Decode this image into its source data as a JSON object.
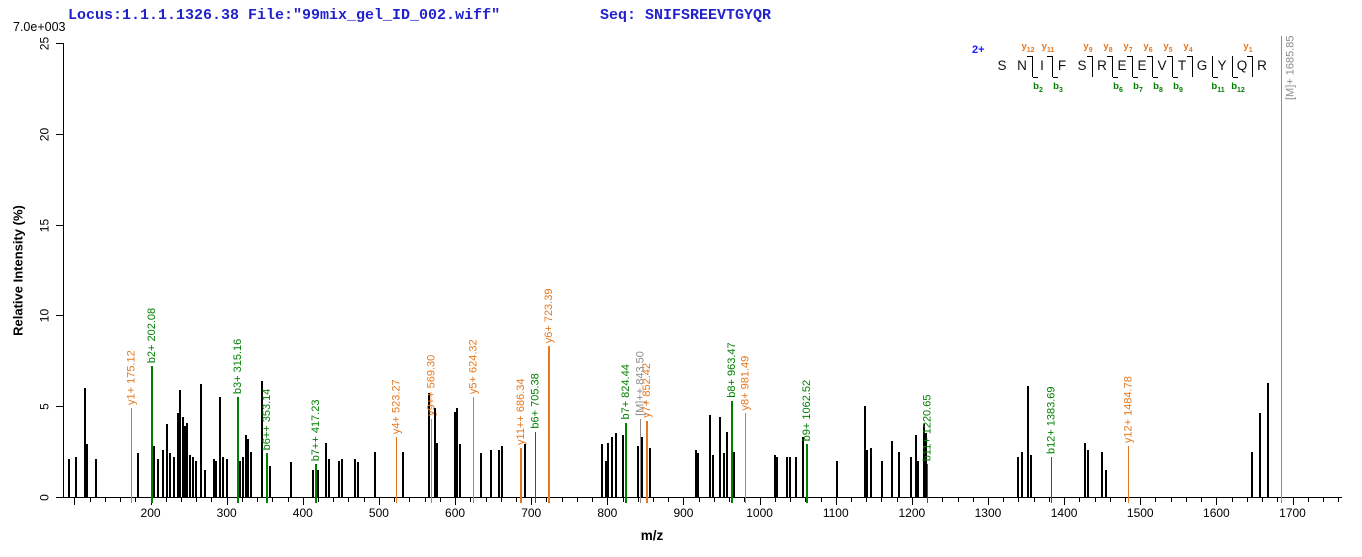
{
  "header": {
    "locus_file": "Locus:1.1.1.1326.38 File:\"99mix_gel_ID_002.wiff\"",
    "seq": "Seq: SNIFSREEVTGYQR"
  },
  "scale_label": "7.0e+003",
  "colors": {
    "y_ion": "#e6781e",
    "b_ion": "#008000",
    "precursor": "#8c8c8c",
    "peak_black": "#000000",
    "header_blue": "#2222cc",
    "charge_blue": "#1a1aff"
  },
  "chart_data": {
    "type": "bar",
    "title": "MS/MS fragment spectrum",
    "xlabel": "m/z",
    "ylabel": "Relative  Intensity (%)",
    "xlim": [
      85,
      1765
    ],
    "ylim": [
      0,
      25
    ],
    "y_ticks": [
      0,
      5,
      10,
      15,
      20,
      25
    ],
    "x_major_step": 100,
    "x_minor_step": 20,
    "x_label_min": 200,
    "x_label_max": 1700,
    "grid": false,
    "peaks": [
      [
        93,
        2.1,
        "bg"
      ],
      [
        102,
        2.2,
        "bg"
      ],
      [
        114,
        6.0,
        "bg"
      ],
      [
        117,
        2.9,
        "bg"
      ],
      [
        128,
        2.1,
        "bg"
      ],
      [
        175.12,
        4.9,
        "y",
        "y1+ 175.12"
      ],
      [
        183,
        2.4,
        "bg"
      ],
      [
        202.08,
        7.2,
        "b",
        "b2+ 202.08"
      ],
      [
        205,
        2.8,
        "bg"
      ],
      [
        210,
        2.1,
        "bg"
      ],
      [
        217,
        2.6,
        "bg"
      ],
      [
        222,
        4.0,
        "bg"
      ],
      [
        226,
        2.4,
        "bg"
      ],
      [
        231,
        2.2,
        "bg"
      ],
      [
        236,
        4.6,
        "bg"
      ],
      [
        239,
        5.9,
        "bg"
      ],
      [
        242,
        4.4,
        "bg"
      ],
      [
        245,
        3.9,
        "bg"
      ],
      [
        248,
        4.1,
        "bg"
      ],
      [
        252,
        2.3,
        "bg"
      ],
      [
        256,
        2.2,
        "bg"
      ],
      [
        260,
        2.0,
        "bg"
      ],
      [
        266,
        6.2,
        "bg"
      ],
      [
        271,
        1.5,
        "bg"
      ],
      [
        283,
        2.1,
        "bg"
      ],
      [
        286,
        2.0,
        "bg"
      ],
      [
        291,
        5.5,
        "bg"
      ],
      [
        295,
        2.2,
        "bg"
      ],
      [
        300,
        2.1,
        "bg"
      ],
      [
        315.16,
        5.5,
        "b",
        "b3+ 315.16"
      ],
      [
        318,
        2.0,
        "bg"
      ],
      [
        321,
        2.2,
        "bg"
      ],
      [
        325,
        3.4,
        "bg"
      ],
      [
        328,
        3.2,
        "bg"
      ],
      [
        332,
        2.5,
        "bg"
      ],
      [
        346,
        6.4,
        "bg"
      ],
      [
        353.14,
        2.4,
        "b",
        "b6++ 353.14"
      ],
      [
        357,
        1.7,
        "bg"
      ],
      [
        384,
        1.9,
        "bg"
      ],
      [
        413,
        1.5,
        "bg"
      ],
      [
        417.23,
        1.8,
        "b",
        "b7++ 417.23"
      ],
      [
        420,
        1.5,
        "bg"
      ],
      [
        431,
        3.0,
        "bg"
      ],
      [
        434,
        2.1,
        "bg"
      ],
      [
        448,
        2.0,
        "bg"
      ],
      [
        451,
        2.1,
        "bg"
      ],
      [
        469,
        2.1,
        "bg"
      ],
      [
        472,
        1.9,
        "bg"
      ],
      [
        495,
        2.5,
        "bg"
      ],
      [
        523.27,
        3.3,
        "y",
        "y4+ 523.27"
      ],
      [
        531,
        2.5,
        "bg"
      ],
      [
        566,
        5.7,
        "bg"
      ],
      [
        569.3,
        4.3,
        "y",
        "y9++ 569.30"
      ],
      [
        573,
        4.9,
        "bg"
      ],
      [
        576,
        3.0,
        "bg"
      ],
      [
        600,
        4.7,
        "bg"
      ],
      [
        603,
        4.9,
        "bg"
      ],
      [
        606,
        2.9,
        "bg"
      ],
      [
        624.32,
        5.5,
        "y",
        "y5+ 624.32"
      ],
      [
        634,
        2.4,
        "bg"
      ],
      [
        647,
        2.6,
        "bg"
      ],
      [
        658,
        2.6,
        "bg"
      ],
      [
        661,
        2.8,
        "bg"
      ],
      [
        686.34,
        2.7,
        "y",
        "y11++ 686.34"
      ],
      [
        692,
        2.9,
        "bg"
      ],
      [
        705.38,
        3.6,
        "b",
        "b6+ 705.38"
      ],
      [
        723.39,
        8.3,
        "y",
        "y6+ 723.39"
      ],
      [
        793,
        2.9,
        "bg"
      ],
      [
        798,
        2.0,
        "bg"
      ],
      [
        801,
        3.0,
        "bg"
      ],
      [
        806,
        3.3,
        "bg"
      ],
      [
        812,
        3.5,
        "bg"
      ],
      [
        820,
        3.4,
        "bg"
      ],
      [
        824.44,
        4.1,
        "b",
        "b7+ 824.44"
      ],
      [
        840,
        2.8,
        "bg"
      ],
      [
        843.5,
        4.3,
        "M",
        "[M]++ 843.50"
      ],
      [
        846,
        3.3,
        "bg"
      ],
      [
        852.42,
        4.2,
        "y",
        "y7+ 852.42"
      ],
      [
        856,
        2.7,
        "bg"
      ],
      [
        916,
        2.6,
        "bg"
      ],
      [
        919,
        2.4,
        "bg"
      ],
      [
        935,
        4.5,
        "bg"
      ],
      [
        939,
        2.3,
        "bg"
      ],
      [
        948,
        4.4,
        "bg"
      ],
      [
        953,
        2.4,
        "bg"
      ],
      [
        957,
        3.6,
        "bg"
      ],
      [
        963.47,
        5.3,
        "b",
        "b8+ 963.47"
      ],
      [
        966,
        2.5,
        "bg"
      ],
      [
        981.49,
        4.6,
        "y",
        "y8+ 981.49"
      ],
      [
        1020,
        2.3,
        "bg"
      ],
      [
        1023,
        2.2,
        "bg"
      ],
      [
        1036,
        2.2,
        "bg"
      ],
      [
        1040,
        2.2,
        "bg"
      ],
      [
        1048,
        2.2,
        "bg"
      ],
      [
        1057,
        3.3,
        "bg"
      ],
      [
        1062.52,
        2.9,
        "b",
        "b9+ 1062.52"
      ],
      [
        1102,
        2.0,
        "bg"
      ],
      [
        1138,
        5.0,
        "bg"
      ],
      [
        1141,
        2.6,
        "bg"
      ],
      [
        1146,
        2.7,
        "bg"
      ],
      [
        1161,
        2.0,
        "bg"
      ],
      [
        1174,
        3.1,
        "bg"
      ],
      [
        1183,
        2.5,
        "bg"
      ],
      [
        1199,
        2.2,
        "bg"
      ],
      [
        1205,
        3.4,
        "bg"
      ],
      [
        1208,
        2.0,
        "bg"
      ],
      [
        1216,
        4.0,
        "bg"
      ],
      [
        1219,
        3.5,
        "bg"
      ],
      [
        1220.65,
        1.8,
        "b",
        "b11+ 1220.65"
      ],
      [
        1340,
        2.2,
        "bg"
      ],
      [
        1345,
        2.5,
        "bg"
      ],
      [
        1352,
        6.1,
        "bg"
      ],
      [
        1356,
        2.3,
        "bg"
      ],
      [
        1383.69,
        2.2,
        "b",
        "b12+ 1383.69"
      ],
      [
        1428,
        3.0,
        "bg"
      ],
      [
        1432,
        2.6,
        "bg"
      ],
      [
        1450,
        2.5,
        "bg"
      ],
      [
        1455,
        1.5,
        "bg"
      ],
      [
        1484.78,
        2.8,
        "y",
        "y12+ 1484.78"
      ],
      [
        1647,
        2.5,
        "bg"
      ],
      [
        1657,
        4.6,
        "bg"
      ],
      [
        1668,
        6.3,
        "bg"
      ],
      [
        1685.85,
        25.4,
        "precursor",
        "[M]+ 1685.85"
      ]
    ]
  },
  "sequence_panel": {
    "charge": "2+",
    "residues": [
      "S",
      "N",
      "I",
      "F",
      "S",
      "R",
      "E",
      "E",
      "V",
      "T",
      "G",
      "Y",
      "Q",
      "R"
    ],
    "cleavages": [
      {
        "gap": 2,
        "y": "12",
        "b": "2"
      },
      {
        "gap": 3,
        "y": "11",
        "b": "3"
      },
      {
        "gap": 5,
        "y": "9"
      },
      {
        "gap": 6,
        "y": "8",
        "b": "6"
      },
      {
        "gap": 7,
        "y": "7",
        "b": "7"
      },
      {
        "gap": 8,
        "y": "6",
        "b": "8"
      },
      {
        "gap": 9,
        "y": "5",
        "b": "9"
      },
      {
        "gap": 10,
        "y": "4"
      },
      {
        "gap": 11,
        "b": "11"
      },
      {
        "gap": 12,
        "b": "12"
      },
      {
        "gap": 13,
        "y": "1"
      }
    ]
  }
}
